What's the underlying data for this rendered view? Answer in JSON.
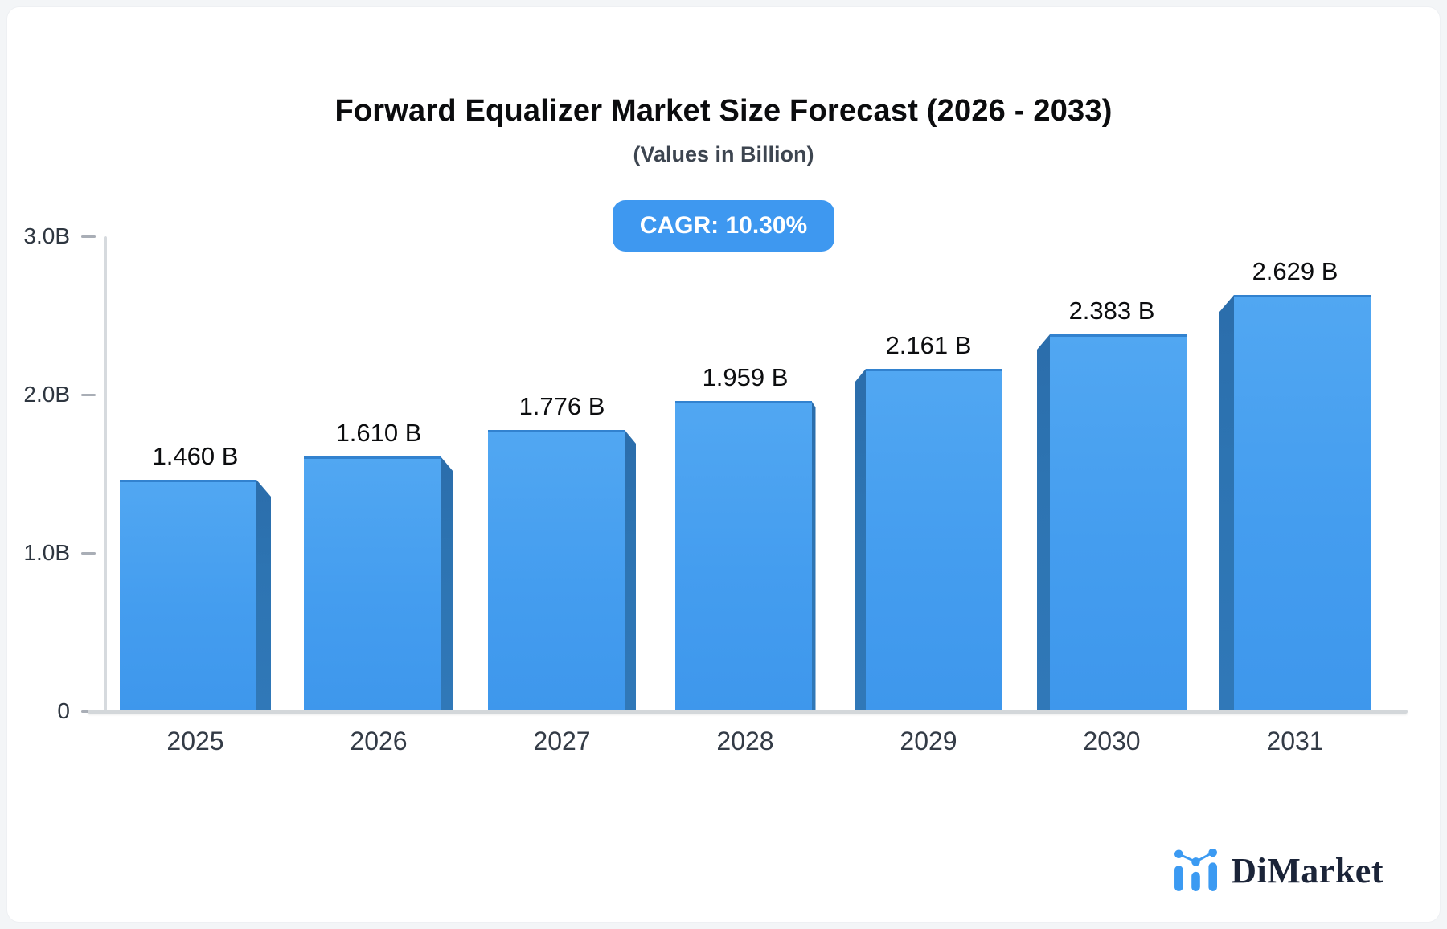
{
  "title": "Forward Equalizer Market Size Forecast (2026 - 2033)",
  "subtitle": "(Values in Billion)",
  "badge": {
    "label": "CAGR: 10.30%"
  },
  "logo": {
    "text": "DiMarket",
    "icon": "mini-bar-chart-icon",
    "icon_color": "#3b9af2",
    "text_color": "#1b2438"
  },
  "chart_data": {
    "type": "bar",
    "title": "Forward Equalizer Market Size Forecast (2026 - 2033)",
    "subtitle": "(Values in Billion)",
    "cagr": "10.30%",
    "unit": "Billion",
    "categories": [
      "2025",
      "2026",
      "2027",
      "2028",
      "2029",
      "2030",
      "2031"
    ],
    "values": [
      1.46,
      1.61,
      1.776,
      1.959,
      2.161,
      2.383,
      2.629
    ],
    "data_labels": [
      "1.460 B",
      "1.610 B",
      "1.776 B",
      "1.959 B",
      "2.161 B",
      "2.383 B",
      "2.629 B"
    ],
    "xlabel": "",
    "ylabel": "",
    "ylim": [
      0,
      3
    ],
    "ytick_labels": [
      "3.0B",
      "2.0B",
      "1.0B",
      "0"
    ],
    "ytick_values": [
      3,
      2,
      1,
      0
    ],
    "grid": false,
    "legend": "none",
    "bar_color": "#429bee",
    "bar_side_color": "#2d74b2",
    "badge_color": "#3e98f0"
  }
}
